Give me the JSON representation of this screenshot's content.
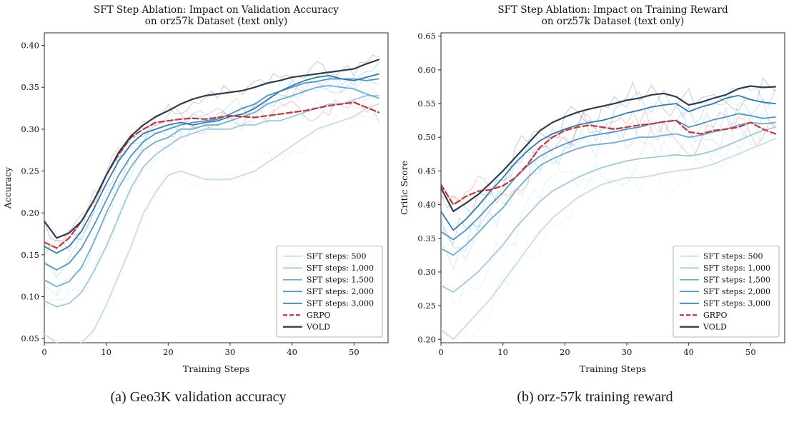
{
  "figure": {
    "captions": {
      "left": "(a) Geo3K validation accuracy",
      "right": "(b) orz-57k training reward"
    }
  },
  "chart_data": [
    {
      "type": "line",
      "title_lines": [
        "SFT Step Ablation: Impact on Validation Accuracy",
        "on orz57k Dataset (text only)"
      ],
      "xlabel": "Training Steps",
      "ylabel": "Accuracy",
      "xlim": [
        0,
        55.5
      ],
      "ylim": [
        0.045,
        0.415
      ],
      "xticks": [
        0,
        10,
        20,
        30,
        40,
        50
      ],
      "yticks": [
        0.05,
        0.1,
        0.15,
        0.2,
        0.25,
        0.3,
        0.35,
        0.4
      ],
      "legend_position": "lower right",
      "grid": false,
      "raw_line_alpha": 0.28,
      "raw_noise": 0.012,
      "x": [
        0,
        2,
        4,
        6,
        8,
        10,
        12,
        14,
        16,
        18,
        20,
        22,
        24,
        26,
        28,
        30,
        32,
        34,
        36,
        38,
        40,
        42,
        44,
        46,
        48,
        50,
        52,
        54
      ],
      "series": [
        {
          "name": "SFT steps: 500",
          "color": "#c6dbef",
          "dash": false,
          "width": 1.8,
          "values": [
            0.055,
            0.045,
            0.04,
            0.045,
            0.06,
            0.09,
            0.125,
            0.16,
            0.2,
            0.225,
            0.245,
            0.25,
            0.245,
            0.24,
            0.24,
            0.24,
            0.245,
            0.25,
            0.26,
            0.27,
            0.28,
            0.29,
            0.3,
            0.305,
            0.31,
            0.315,
            0.325,
            0.33
          ]
        },
        {
          "name": "SFT steps: 1,000",
          "color": "#9ecae1",
          "dash": false,
          "width": 1.8,
          "values": [
            0.095,
            0.088,
            0.092,
            0.105,
            0.13,
            0.16,
            0.195,
            0.23,
            0.255,
            0.27,
            0.28,
            0.29,
            0.295,
            0.3,
            0.3,
            0.3,
            0.305,
            0.305,
            0.31,
            0.31,
            0.315,
            0.32,
            0.325,
            0.33,
            0.33,
            0.335,
            0.34,
            0.34
          ]
        },
        {
          "name": "SFT steps: 1,500",
          "color": "#6baed6",
          "dash": false,
          "width": 1.8,
          "values": [
            0.12,
            0.112,
            0.118,
            0.135,
            0.165,
            0.2,
            0.23,
            0.255,
            0.275,
            0.285,
            0.29,
            0.3,
            0.3,
            0.305,
            0.305,
            0.31,
            0.315,
            0.32,
            0.33,
            0.335,
            0.34,
            0.345,
            0.35,
            0.352,
            0.35,
            0.348,
            0.342,
            0.337
          ]
        },
        {
          "name": "SFT steps: 2,000",
          "color": "#4a98c8",
          "dash": false,
          "width": 1.8,
          "values": [
            0.14,
            0.132,
            0.14,
            0.158,
            0.185,
            0.215,
            0.245,
            0.268,
            0.285,
            0.295,
            0.3,
            0.305,
            0.308,
            0.31,
            0.312,
            0.318,
            0.325,
            0.33,
            0.34,
            0.345,
            0.35,
            0.355,
            0.357,
            0.36,
            0.36,
            0.36,
            0.358,
            0.36
          ]
        },
        {
          "name": "SFT steps: 3,000",
          "color": "#2e7bb4",
          "dash": false,
          "width": 1.8,
          "values": [
            0.16,
            0.152,
            0.16,
            0.178,
            0.205,
            0.235,
            0.262,
            0.282,
            0.295,
            0.3,
            0.305,
            0.308,
            0.305,
            0.308,
            0.31,
            0.315,
            0.318,
            0.325,
            0.335,
            0.345,
            0.352,
            0.358,
            0.362,
            0.364,
            0.36,
            0.358,
            0.362,
            0.366
          ]
        },
        {
          "name": "GRPO",
          "color": "#cb3335",
          "dash": true,
          "width": 2.2,
          "values": [
            0.165,
            0.158,
            0.17,
            0.19,
            0.215,
            0.245,
            0.27,
            0.29,
            0.3,
            0.308,
            0.31,
            0.312,
            0.313,
            0.312,
            0.314,
            0.316,
            0.315,
            0.314,
            0.316,
            0.318,
            0.32,
            0.322,
            0.325,
            0.328,
            0.33,
            0.332,
            0.326,
            0.32
          ]
        },
        {
          "name": "VOLD",
          "color": "#2d3e50",
          "dash": false,
          "width": 2.2,
          "values": [
            0.19,
            0.17,
            0.176,
            0.19,
            0.215,
            0.245,
            0.272,
            0.292,
            0.305,
            0.315,
            0.322,
            0.33,
            0.336,
            0.34,
            0.342,
            0.344,
            0.346,
            0.35,
            0.355,
            0.358,
            0.362,
            0.364,
            0.366,
            0.368,
            0.37,
            0.372,
            0.378,
            0.383
          ]
        }
      ]
    },
    {
      "type": "line",
      "title_lines": [
        "SFT Step Ablation: Impact on Training Reward",
        "on orz57k Dataset (text only)"
      ],
      "xlabel": "Training Steps",
      "ylabel": "Critic Score",
      "xlim": [
        0,
        55.5
      ],
      "ylim": [
        0.195,
        0.655
      ],
      "xticks": [
        0,
        10,
        20,
        30,
        40,
        50
      ],
      "yticks": [
        0.2,
        0.25,
        0.3,
        0.35,
        0.4,
        0.45,
        0.5,
        0.55,
        0.6,
        0.65
      ],
      "legend_position": "lower right",
      "grid": false,
      "raw_line_alpha": 0.28,
      "raw_noise": 0.024,
      "x": [
        0,
        2,
        4,
        6,
        8,
        10,
        12,
        14,
        16,
        18,
        20,
        22,
        24,
        26,
        28,
        30,
        32,
        34,
        36,
        38,
        40,
        42,
        44,
        46,
        48,
        50,
        52,
        54
      ],
      "series": [
        {
          "name": "SFT steps: 500",
          "color": "#c6dbef",
          "dash": false,
          "width": 1.8,
          "values": [
            0.215,
            0.2,
            0.22,
            0.24,
            0.26,
            0.285,
            0.31,
            0.335,
            0.36,
            0.38,
            0.395,
            0.41,
            0.42,
            0.43,
            0.435,
            0.44,
            0.44,
            0.443,
            0.447,
            0.45,
            0.452,
            0.455,
            0.46,
            0.468,
            0.475,
            0.483,
            0.49,
            0.498
          ]
        },
        {
          "name": "SFT steps: 1,000",
          "color": "#9ecae1",
          "dash": false,
          "width": 1.8,
          "values": [
            0.28,
            0.27,
            0.285,
            0.3,
            0.32,
            0.34,
            0.365,
            0.385,
            0.405,
            0.42,
            0.43,
            0.44,
            0.448,
            0.455,
            0.46,
            0.465,
            0.468,
            0.47,
            0.472,
            0.474,
            0.472,
            0.475,
            0.48,
            0.487,
            0.495,
            0.503,
            0.51,
            0.515
          ]
        },
        {
          "name": "SFT steps: 1,500",
          "color": "#6baed6",
          "dash": false,
          "width": 1.8,
          "values": [
            0.335,
            0.325,
            0.34,
            0.358,
            0.378,
            0.395,
            0.42,
            0.44,
            0.458,
            0.468,
            0.476,
            0.483,
            0.488,
            0.49,
            0.492,
            0.496,
            0.5,
            0.5,
            0.503,
            0.505,
            0.5,
            0.503,
            0.508,
            0.512,
            0.518,
            0.522,
            0.52,
            0.522
          ]
        },
        {
          "name": "SFT steps: 2,000",
          "color": "#4a98c8",
          "dash": false,
          "width": 1.8,
          "values": [
            0.36,
            0.348,
            0.362,
            0.38,
            0.4,
            0.418,
            0.44,
            0.458,
            0.472,
            0.482,
            0.49,
            0.497,
            0.502,
            0.505,
            0.508,
            0.512,
            0.515,
            0.52,
            0.523,
            0.525,
            0.515,
            0.52,
            0.526,
            0.53,
            0.535,
            0.532,
            0.528,
            0.53
          ]
        },
        {
          "name": "SFT steps: 3,000",
          "color": "#2e7bb4",
          "dash": false,
          "width": 1.8,
          "values": [
            0.39,
            0.362,
            0.378,
            0.398,
            0.42,
            0.44,
            0.462,
            0.48,
            0.495,
            0.505,
            0.512,
            0.518,
            0.522,
            0.525,
            0.53,
            0.536,
            0.54,
            0.545,
            0.548,
            0.55,
            0.538,
            0.545,
            0.55,
            0.558,
            0.562,
            0.556,
            0.552,
            0.55
          ]
        },
        {
          "name": "GRPO",
          "color": "#cb3335",
          "dash": true,
          "width": 2.2,
          "values": [
            0.43,
            0.4,
            0.412,
            0.42,
            0.422,
            0.428,
            0.44,
            0.46,
            0.485,
            0.5,
            0.51,
            0.515,
            0.518,
            0.515,
            0.512,
            0.515,
            0.518,
            0.52,
            0.523,
            0.525,
            0.508,
            0.505,
            0.51,
            0.512,
            0.515,
            0.522,
            0.512,
            0.505
          ]
        },
        {
          "name": "VOLD",
          "color": "#2d3e50",
          "dash": false,
          "width": 2.2,
          "values": [
            0.425,
            0.39,
            0.402,
            0.415,
            0.432,
            0.45,
            0.47,
            0.49,
            0.51,
            0.522,
            0.53,
            0.537,
            0.542,
            0.546,
            0.55,
            0.555,
            0.558,
            0.563,
            0.565,
            0.56,
            0.548,
            0.552,
            0.558,
            0.563,
            0.572,
            0.576,
            0.574,
            0.575
          ]
        }
      ]
    }
  ]
}
